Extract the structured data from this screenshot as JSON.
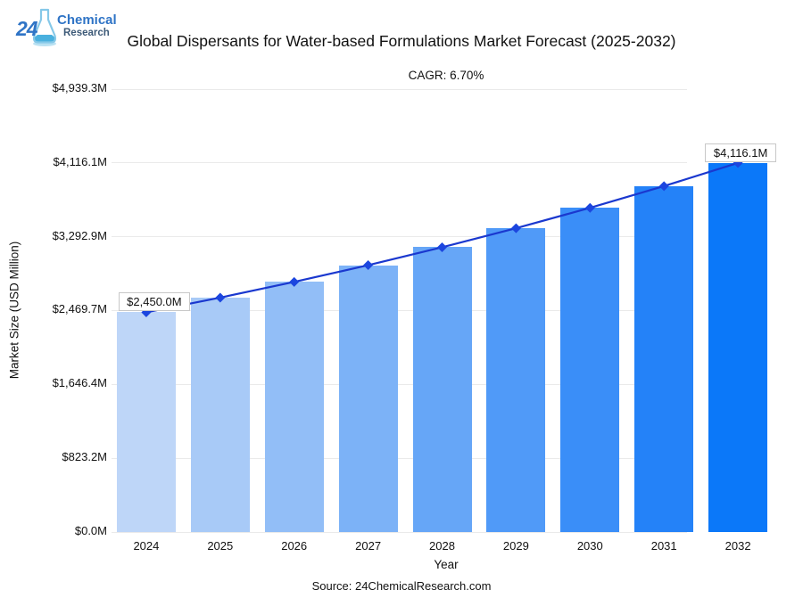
{
  "logo": {
    "number": "24",
    "name_top": "Chemical",
    "name_bottom": "Research"
  },
  "chart": {
    "title": "Global Dispersants for Water-based Formulations Market Forecast (2025-2032)",
    "subtitle": "CAGR: 6.70%",
    "y_axis_label": "Market Size (USD Million)",
    "x_axis_label": "Year",
    "source": "Source: 24ChemicalResearch.com"
  },
  "chart_data": {
    "type": "bar",
    "overlay": "line",
    "title": "Global Dispersants for Water-based Formulations Market Forecast (2025-2032)",
    "subtitle": "CAGR: 6.70%",
    "xlabel": "Year",
    "ylabel": "Market Size (USD Million)",
    "categories": [
      "2024",
      "2025",
      "2026",
      "2027",
      "2028",
      "2029",
      "2030",
      "2031",
      "2032"
    ],
    "values": [
      2450.0,
      2614.2,
      2789.3,
      2976.2,
      3175.6,
      3388.3,
      3615.4,
      3857.6,
      4116.1
    ],
    "labeled_points": [
      {
        "index": 0,
        "label": "$2,450.0M"
      },
      {
        "index": 8,
        "label": "$4,116.1M"
      }
    ],
    "y_ticks": [
      {
        "label": "$0.0M",
        "value": 0
      },
      {
        "label": "$823.2M",
        "value": 823.2
      },
      {
        "label": "$1,646.4M",
        "value": 1646.4
      },
      {
        "label": "$2,469.7M",
        "value": 2469.7
      },
      {
        "label": "$3,292.9M",
        "value": 3292.9
      },
      {
        "label": "$4,116.1M",
        "value": 4116.1
      },
      {
        "label": "$4,939.3M",
        "value": 4939.3
      }
    ],
    "ylim": [
      0,
      4939.3
    ],
    "grid": "horizontal",
    "legend": "none",
    "bar_colors": [
      "#bed6f8",
      "#a8caf7",
      "#92bef7",
      "#7cb2f7",
      "#66a6f7",
      "#509af8",
      "#3a8ef8",
      "#2482f8",
      "#0b78f9"
    ],
    "line_color": "#1a38cf",
    "marker": "diamond",
    "marker_color": "#1c46df"
  }
}
